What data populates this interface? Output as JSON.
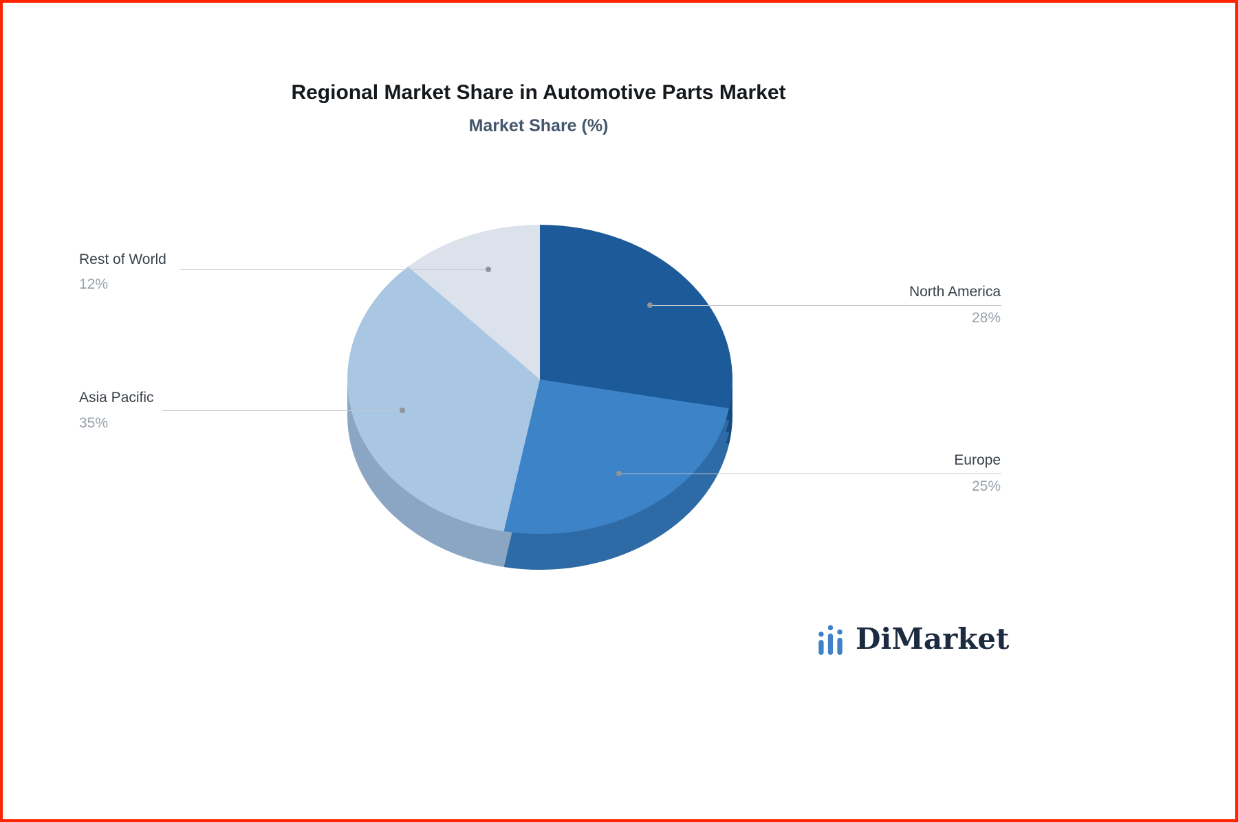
{
  "page": {
    "frame_color": "#ff2200",
    "background": "#ffffff"
  },
  "header": {
    "title": "Regional Market Share in Automotive Parts Market",
    "subtitle": "Market Share (%)"
  },
  "chart_data": {
    "type": "pie",
    "style": "3d",
    "title": "Regional Market Share in Automotive Parts Market",
    "subtitle": "Market Share (%)",
    "unit": "%",
    "start_angle_deg": 0,
    "direction": "clockwise",
    "slices": [
      {
        "label": "North America",
        "value": 28,
        "pct": "28%",
        "color": "#1d5a9a",
        "depth_color": "#174a7f",
        "callout_side": "right"
      },
      {
        "label": "Europe",
        "value": 25,
        "pct": "25%",
        "color": "#3c83c7",
        "depth_color": "#2e6ba6",
        "callout_side": "right"
      },
      {
        "label": "Asia Pacific",
        "value": 35,
        "pct": "35%",
        "color": "#a9c6e3",
        "depth_color": "#8ba6c2",
        "callout_side": "left"
      },
      {
        "label": "Rest of World",
        "value": 12,
        "pct": "12%",
        "color": "#dbe2ec",
        "depth_color": "#b8c1cd",
        "callout_side": "left"
      }
    ]
  },
  "branding": {
    "logo_text": "DiMarket",
    "logo_icon": "bar-chart-icon",
    "logo_text_color": "#1c2b40",
    "logo_icon_color": "#3e82c8"
  }
}
